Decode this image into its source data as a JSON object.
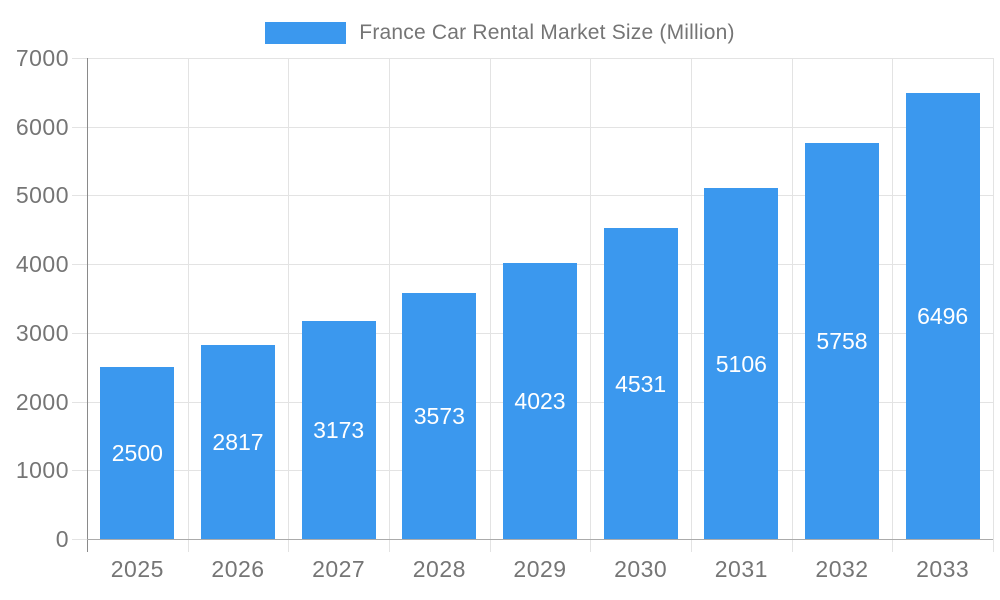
{
  "chart_data": {
    "type": "bar",
    "title": "France Car Rental Market Size (Million)",
    "series_name": "France Car Rental Market Size (Million)",
    "categories": [
      "2025",
      "2026",
      "2027",
      "2028",
      "2029",
      "2030",
      "2031",
      "2032",
      "2033"
    ],
    "values": [
      2500,
      2817,
      3173,
      3573,
      4023,
      4531,
      5106,
      5758,
      6496
    ],
    "xlabel": "",
    "ylabel": "",
    "ylim": [
      0,
      7000
    ],
    "ytick_step": 1000,
    "grid": true,
    "legend_position": "top",
    "colors": {
      "bar": "#3B98EE",
      "grid": "#E3E3E3",
      "axis": "#8A8A8A",
      "baseline": "#ABABAB",
      "text": "#757575",
      "bar_label": "#FFFFFF",
      "background": "#FFFFFF"
    }
  }
}
